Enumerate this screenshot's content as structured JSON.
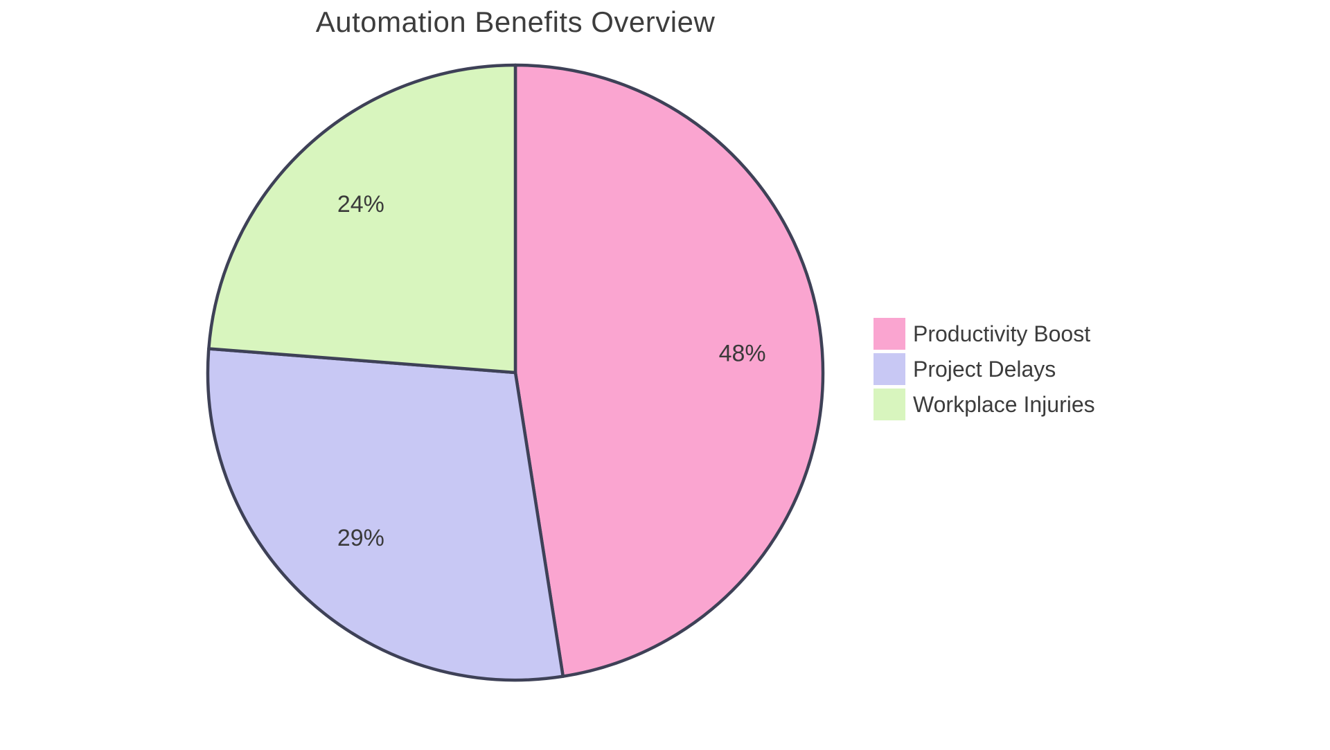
{
  "page": {
    "background": "#ffffff"
  },
  "chart_data": {
    "type": "pie",
    "title": "Automation Benefits Overview",
    "slices": [
      {
        "label": "Productivity Boost",
        "value": 48,
        "percent_label": "48%",
        "color": "#faa5d0"
      },
      {
        "label": "Project Delays",
        "value": 29,
        "percent_label": "29%",
        "color": "#c8c8f4"
      },
      {
        "label": "Workplace Injuries",
        "value": 24,
        "percent_label": "24%",
        "color": "#d8f5be"
      }
    ],
    "start_angle_deg": -90,
    "direction": "clockwise",
    "legend_position": "right",
    "style": {
      "outline_color": "#3e4157",
      "outline_width": 4.5,
      "title_color": "#3d3d3d",
      "label_color": "#3a3a3a",
      "background": "#ffffff"
    }
  }
}
